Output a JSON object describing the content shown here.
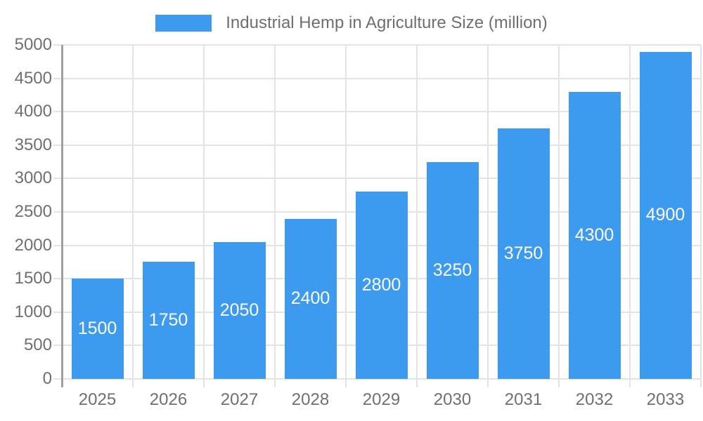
{
  "legend": {
    "label": "Industrial Hemp in Agriculture Size (million)"
  },
  "colors": {
    "bar": "#3C9AEF",
    "bar_label": "#FFFFFF",
    "grid": "#E3E3E3",
    "axis_line": "#9F9F9F",
    "text": "#6F6F6F",
    "background": "#FFFFFF"
  },
  "chart_data": {
    "type": "bar",
    "title": "Industrial Hemp in Agriculture Size (million)",
    "categories": [
      "2025",
      "2026",
      "2027",
      "2028",
      "2029",
      "2030",
      "2031",
      "2032",
      "2033"
    ],
    "values": [
      1500,
      1750,
      2050,
      2400,
      2800,
      3250,
      3750,
      4300,
      4900
    ],
    "series": [
      {
        "name": "Industrial Hemp in Agriculture Size (million)",
        "values": [
          1500,
          1750,
          2050,
          2400,
          2800,
          3250,
          3750,
          4300,
          4900
        ]
      }
    ],
    "xlabel": "",
    "ylabel": "",
    "ylim": [
      0,
      5000
    ],
    "yticks": [
      0,
      500,
      1000,
      1500,
      2000,
      2500,
      3000,
      3500,
      4000,
      4500,
      5000
    ],
    "grid": true,
    "legend_position": "top-center",
    "value_labels": "inside-middle"
  }
}
